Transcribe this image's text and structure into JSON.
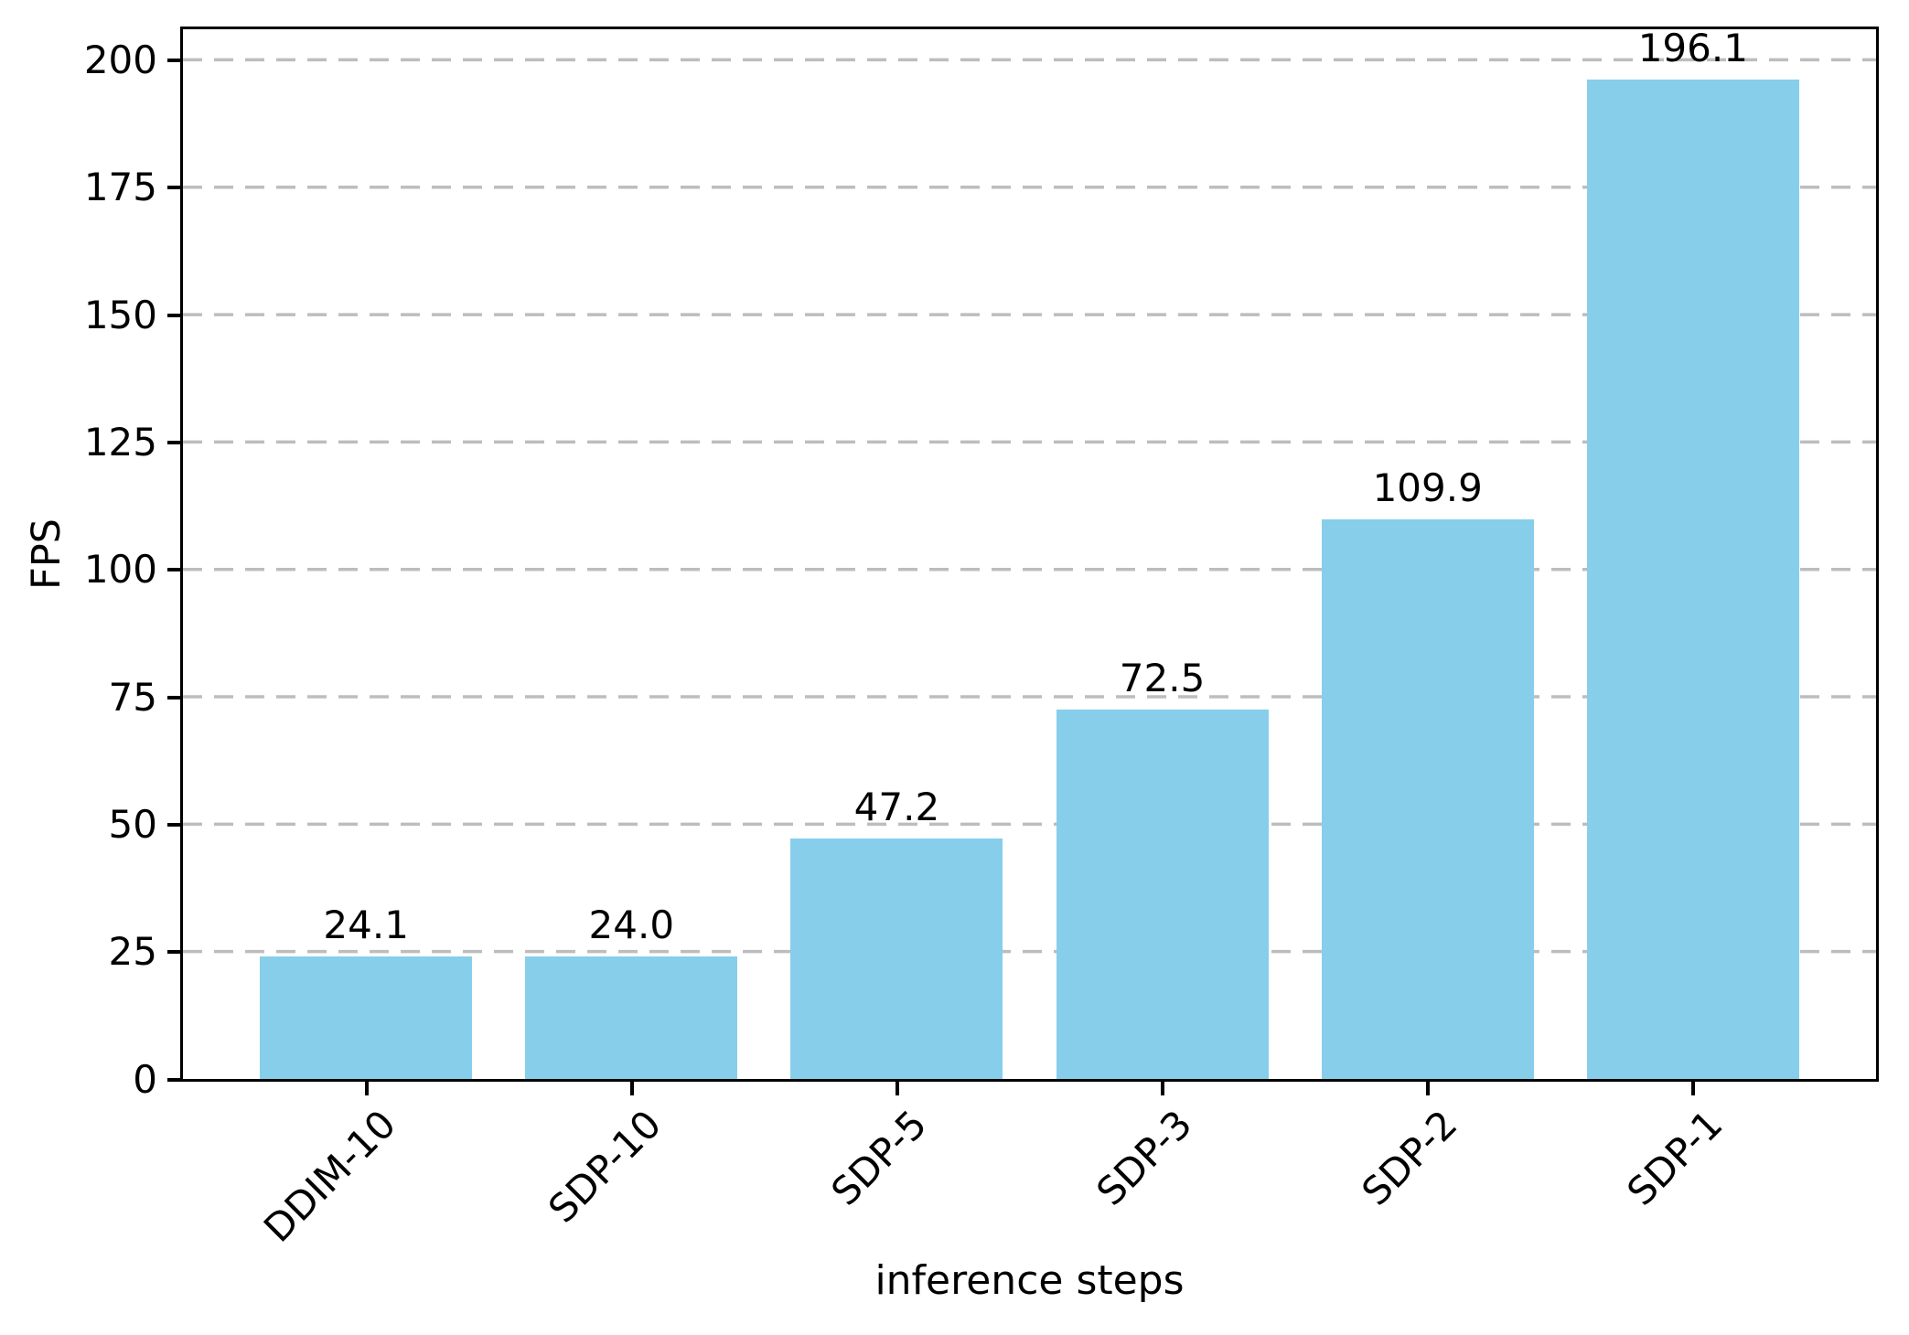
{
  "chart_data": {
    "type": "bar",
    "title": "",
    "xlabel": "inference steps",
    "ylabel": "FPS",
    "categories": [
      "DDIM-10",
      "SDP-10",
      "SDP-5",
      "SDP-3",
      "SDP-2",
      "SDP-1"
    ],
    "values": [
      24.1,
      24.0,
      47.2,
      72.5,
      109.9,
      196.1
    ],
    "value_labels": [
      "24.1",
      "24.0",
      "47.2",
      "72.5",
      "109.9",
      "196.1"
    ],
    "yticks": [
      0,
      25,
      50,
      75,
      100,
      125,
      150,
      175,
      200
    ],
    "ytick_labels": [
      "0",
      "25",
      "50",
      "75",
      "100",
      "125",
      "150",
      "175",
      "200"
    ],
    "ylim": [
      0,
      206
    ],
    "xtick_rotation_deg": 45,
    "grid": {
      "axis": "y",
      "style": "dashed",
      "color": "#bdbdbd"
    },
    "colors": {
      "bar": "#87CEEB",
      "axis": "#000000",
      "text": "#000000",
      "background": "#ffffff"
    },
    "legend_position": "none"
  }
}
